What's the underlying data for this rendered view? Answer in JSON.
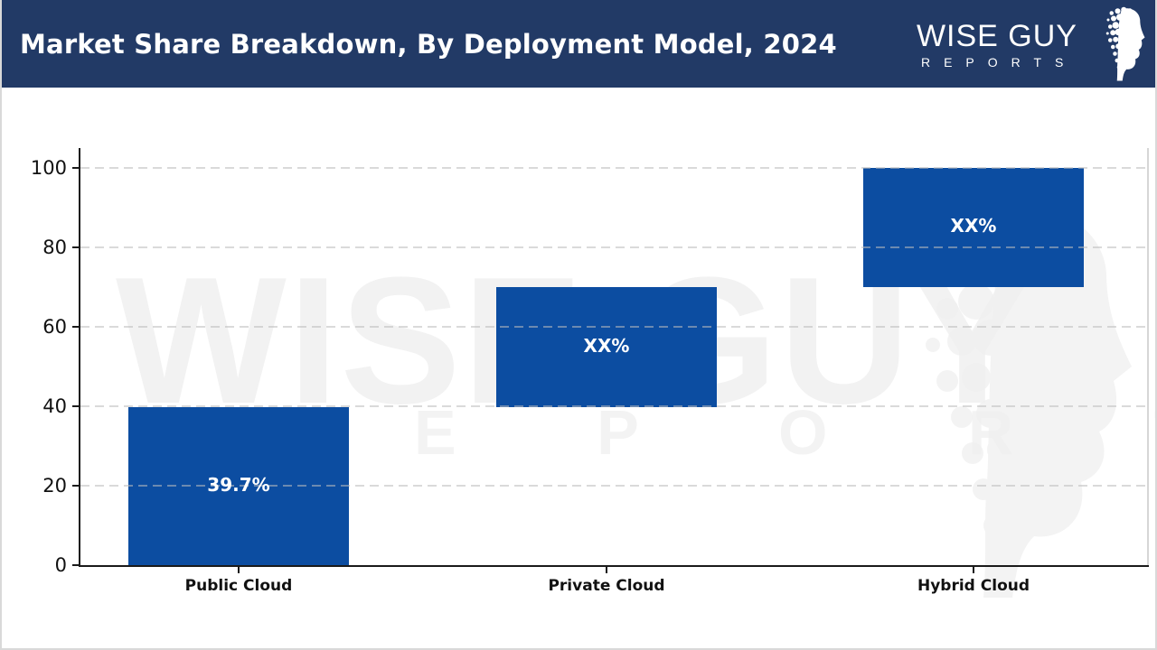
{
  "header": {
    "title": "Market Share Breakdown, By Deployment Model, 2024",
    "logo": {
      "line1": "WISE GUY",
      "line2": "REPORTS"
    }
  },
  "watermark": {
    "line1": "WISE GUY",
    "line2": "R E P O R T S"
  },
  "colors": {
    "header_bg": "#223a66",
    "bar": "#0c4da1",
    "axis": "#1a1a1a",
    "grid": "#dcdcdc",
    "right_spine": "#d6d6d6",
    "watermark": "#f2f2f2",
    "bar_label": "#ffffff",
    "title_text": "#ffffff"
  },
  "chart_data": {
    "type": "bar",
    "variant": "floating-waterfall-segments",
    "title": "Market Share Breakdown, By Deployment Model, 2024",
    "categories": [
      "Public Cloud",
      "Private Cloud",
      "Hybrid Cloud"
    ],
    "segments": [
      {
        "category": "Public Cloud",
        "from": 0,
        "to": 39.7,
        "label": "39.7%"
      },
      {
        "category": "Private Cloud",
        "from": 39.7,
        "to": 70,
        "label": "XX%"
      },
      {
        "category": "Hybrid Cloud",
        "from": 70,
        "to": 100,
        "label": "XX%"
      }
    ],
    "xlabel": "",
    "ylabel": "",
    "ylim": [
      0,
      100
    ],
    "yticks": [
      0,
      20,
      40,
      60,
      80,
      100
    ],
    "grid": "horizontal-dashed-over-bars",
    "legend": "none"
  }
}
